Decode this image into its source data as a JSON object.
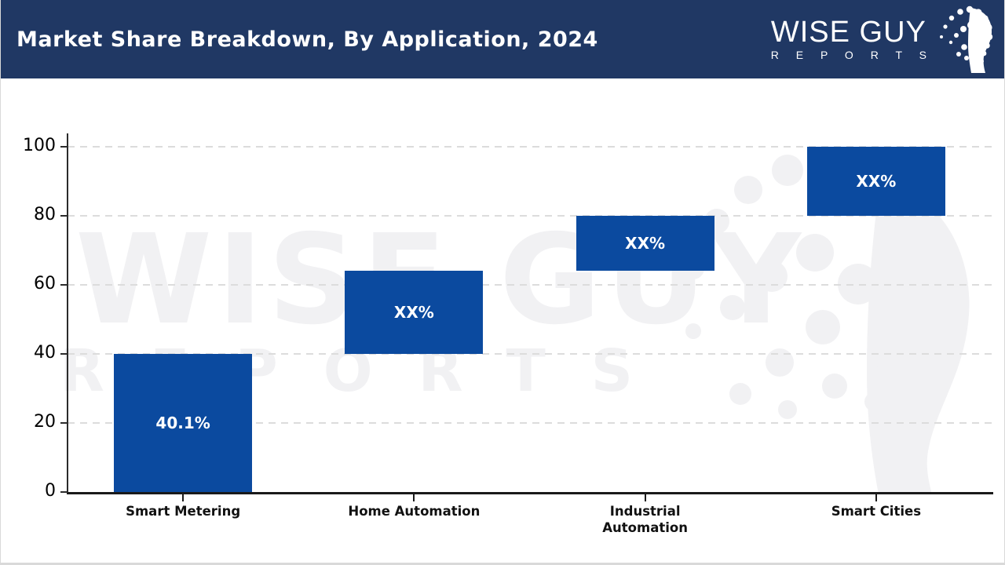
{
  "header": {
    "title": "Market Share Breakdown, By Application, 2024",
    "logo": {
      "name": "WISE GUY",
      "subtitle": "R E P O R T S"
    },
    "bg_color": "#203864"
  },
  "watermark": {
    "line1": "WISE GUY",
    "line2": "REPORTS"
  },
  "chart_data": {
    "type": "bar",
    "subtype": "waterfall",
    "title": "Market Share Breakdown, By Application, 2024",
    "categories": [
      "Smart Metering",
      "Home Automation",
      "Industrial\nAutomation",
      "Smart Cities"
    ],
    "segments": [
      {
        "category": "Smart Metering",
        "start": 0,
        "end": 40.1,
        "label": "40.1%"
      },
      {
        "category": "Home Automation",
        "start": 40.1,
        "end": 64,
        "label": "XX%"
      },
      {
        "category": "Industrial Automation",
        "start": 64,
        "end": 80,
        "label": "XX%"
      },
      {
        "category": "Smart Cities",
        "start": 80,
        "end": 100,
        "label": "XX%"
      }
    ],
    "ylim": [
      0,
      100
    ],
    "yticks": [
      0,
      20,
      40,
      60,
      80,
      100
    ],
    "xlabel": "",
    "ylabel": "",
    "grid": "horizontal-dashed",
    "legend": "none",
    "bar_color": "#0b4a9f",
    "bar_label_color": "#ffffff",
    "axis_color": "#1a1a1a",
    "grid_color": "#dcdcdc"
  }
}
